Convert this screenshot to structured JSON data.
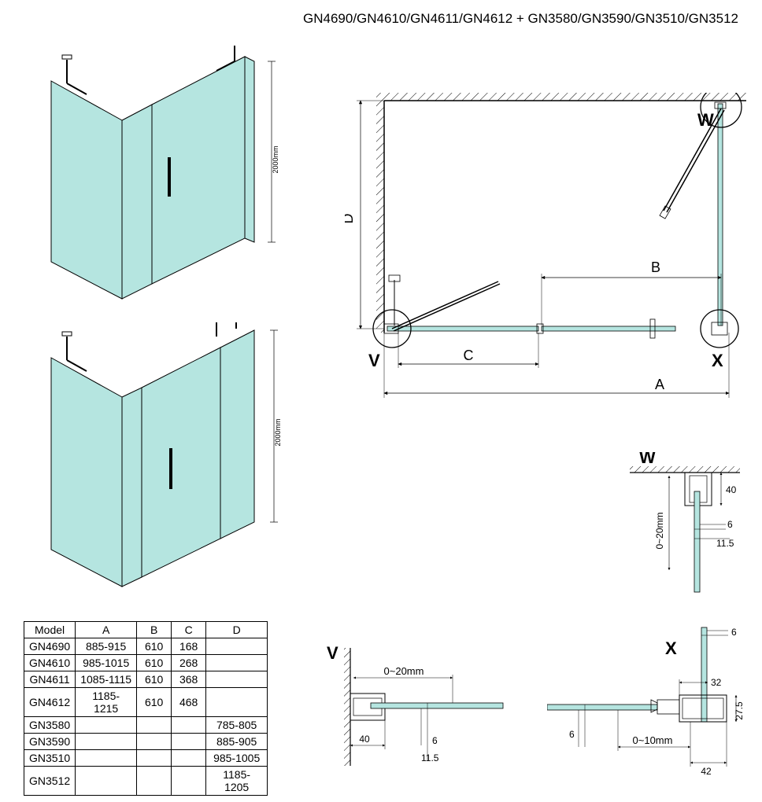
{
  "title": "GN4690/GN4610/GN4611/GN4612 + GN3580/GN3590/GN3510/GN3512",
  "glass_color": "#b5e5e0",
  "stroke_color": "#000000",
  "iso_height_label": "2000mm",
  "plan_labels": {
    "A": "A",
    "B": "B",
    "C": "C",
    "D": "D",
    "V": "V",
    "W": "W",
    "X": "X"
  },
  "detail_w": {
    "label": "W",
    "range": "0~20mm",
    "d40": "40",
    "d6": "6",
    "d115": "11.5"
  },
  "detail_v": {
    "label": "V",
    "range": "0~20mm",
    "d40": "40",
    "d6": "6",
    "d115": "11.5"
  },
  "detail_x": {
    "label": "X",
    "range": "0~10mm",
    "d6h": "6",
    "d6v": "6",
    "d32": "32",
    "d275": "27.5",
    "d42": "42"
  },
  "table": {
    "headers": [
      "Model",
      "A",
      "B",
      "C",
      "D"
    ],
    "rows": [
      [
        "GN4690",
        "885-915",
        "610",
        "168",
        ""
      ],
      [
        "GN4610",
        "985-1015",
        "610",
        "268",
        ""
      ],
      [
        "GN4611",
        "1085-1115",
        "610",
        "368",
        ""
      ],
      [
        "GN4612",
        "1185-1215",
        "610",
        "468",
        ""
      ],
      [
        "GN3580",
        "",
        "",
        "",
        "785-805"
      ],
      [
        "GN3590",
        "",
        "",
        "",
        "885-905"
      ],
      [
        "GN3510",
        "",
        "",
        "",
        "985-1005"
      ],
      [
        "GN3512",
        "",
        "",
        "",
        "1185-1205"
      ]
    ]
  }
}
